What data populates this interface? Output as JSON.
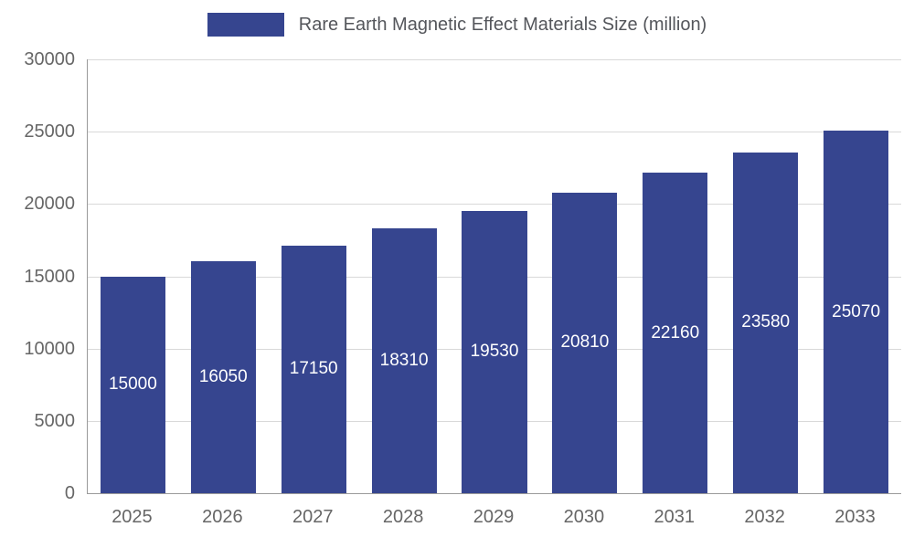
{
  "chart_data": {
    "type": "bar",
    "title": "Rare Earth Magnetic Effect Materials Size (million)",
    "categories": [
      "2025",
      "2026",
      "2027",
      "2028",
      "2029",
      "2030",
      "2031",
      "2032",
      "2033"
    ],
    "values": [
      15000,
      16050,
      17150,
      18310,
      19530,
      20810,
      22160,
      23580,
      25070
    ],
    "xlabel": "",
    "ylabel": "",
    "ylim": [
      0,
      30000
    ],
    "yticks": [
      0,
      5000,
      10000,
      15000,
      20000,
      25000,
      30000
    ],
    "grid": true,
    "legend_position": "top-center",
    "colors": {
      "bar": "#36458F",
      "bar_value_label": "#ffffff",
      "axis_text": "#666666",
      "legend_text": "#54565b",
      "gridline": "#d9d9d9",
      "axis_line": "#9a9a9a"
    }
  }
}
